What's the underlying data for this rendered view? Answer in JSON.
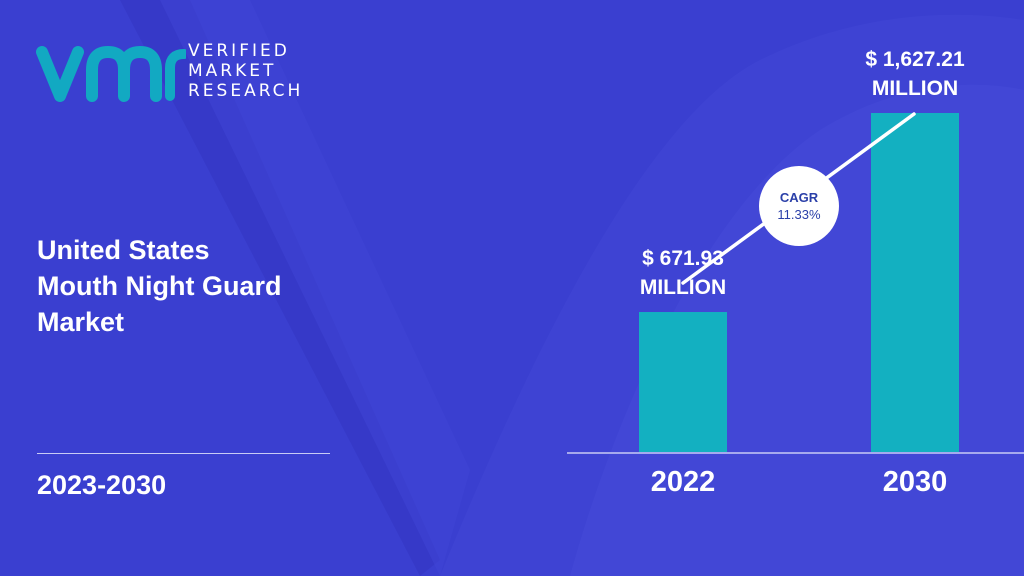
{
  "brand": {
    "logo_lines": [
      "VERIFIED",
      "MARKET",
      "RESEARCH"
    ],
    "colors": {
      "background": "#3a3fd0",
      "bar": "#13b0c1",
      "text": "#ffffff",
      "badge_text": "#2a3fa8"
    }
  },
  "report": {
    "title_lines": [
      "United States",
      "Mouth Night Guard",
      "Market"
    ],
    "period": "2023-2030"
  },
  "chart_data": {
    "type": "bar",
    "categories": [
      "2022",
      "2030"
    ],
    "values": [
      671.93,
      1627.21
    ],
    "value_labels": [
      [
        "$ 671.93",
        "MILLION"
      ],
      [
        "$ 1,627.21",
        "MILLION"
      ]
    ],
    "annotation": {
      "label": "CAGR",
      "value": "11.33%"
    },
    "title": "",
    "xlabel": "",
    "ylabel": "",
    "ylim": [
      0,
      1627.21
    ],
    "grid": false,
    "legend": "none"
  }
}
